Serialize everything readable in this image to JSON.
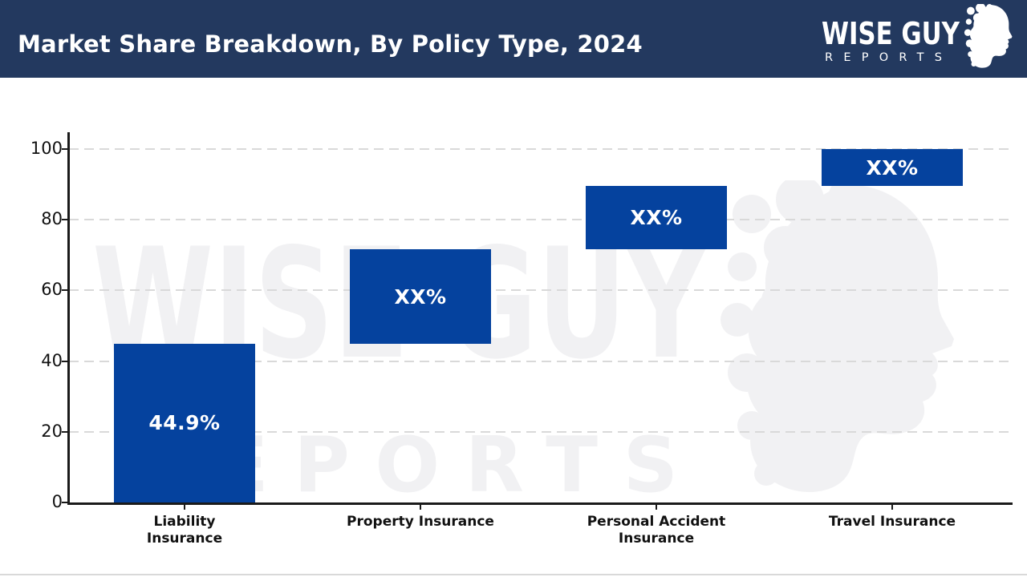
{
  "header": {
    "title": "Market Share Breakdown, By Policy Type, 2024",
    "logo": {
      "brand": "WISE GUY",
      "sub": "REPORTS"
    }
  },
  "watermark": {
    "brand": "WISE GUY",
    "sub": "REPORTS"
  },
  "colors": {
    "page_bg": "#ffffff",
    "header_bg": "#23395f",
    "bar": "#05429e",
    "grid": "#d9d9d9",
    "axis": "#1a1a1a",
    "text": "#111111",
    "bar_label": "#ffffff",
    "watermark": "#f1f1f3",
    "bottom_rule": "#d9d9d9"
  },
  "chart_data": {
    "type": "bar",
    "variant": "waterfall",
    "title": "Market Share Breakdown, By Policy Type, 2024",
    "categories": [
      {
        "name": "Liability Insurance",
        "lines": [
          "Liability",
          "Insurance"
        ]
      },
      {
        "name": "Property Insurance",
        "lines": [
          "Property Insurance"
        ]
      },
      {
        "name": "Personal Accident Insurance",
        "lines": [
          "Personal Accident",
          "Insurance"
        ]
      },
      {
        "name": "Travel Insurance",
        "lines": [
          "Travel Insurance"
        ]
      }
    ],
    "segments": [
      {
        "category": "Liability Insurance",
        "start": 0,
        "end": 44.9,
        "label": "44.9%"
      },
      {
        "category": "Property Insurance",
        "start": 44.9,
        "end": 71.6,
        "label": "XX%"
      },
      {
        "category": "Personal Accident Insurance",
        "start": 71.6,
        "end": 89.5,
        "label": "XX%"
      },
      {
        "category": "Travel Insurance",
        "start": 89.5,
        "end": 100.0,
        "label": "XX%"
      }
    ],
    "ylim": [
      0,
      104
    ],
    "y_ticks": [
      0,
      20,
      40,
      60,
      80,
      100
    ],
    "grid": {
      "horizontal": true,
      "style": "dashed"
    },
    "legend": "none",
    "xlabel": "",
    "ylabel": ""
  }
}
